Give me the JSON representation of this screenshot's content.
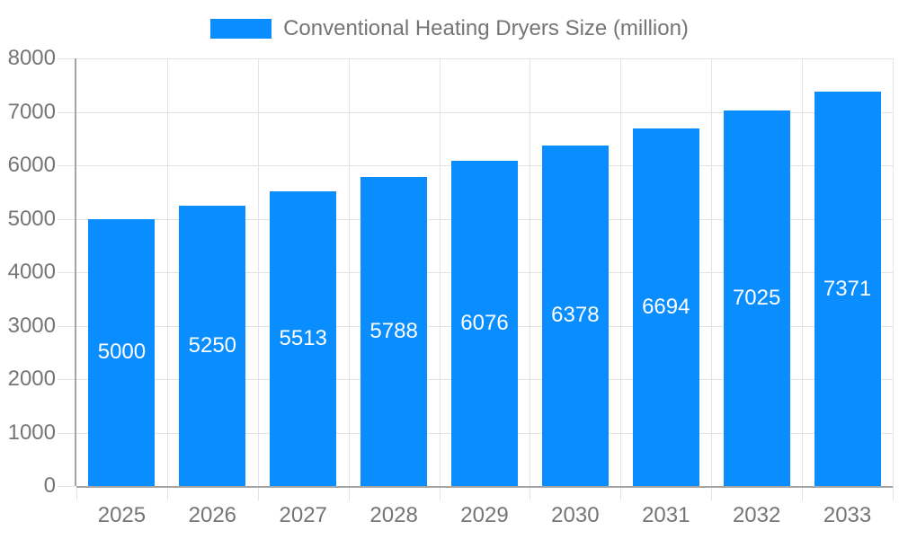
{
  "legend": {
    "label": "Conventional Heating Dryers Size (million)"
  },
  "colors": {
    "bar": "#0a8eff",
    "grid": "#e3e3e3",
    "axis": "#a3a3a3",
    "tick_label": "#757575",
    "value_label": "#ffffff",
    "background": "#ffffff"
  },
  "chart_data": {
    "type": "bar",
    "title": "",
    "categories": [
      "2025",
      "2026",
      "2027",
      "2028",
      "2029",
      "2030",
      "2031",
      "2032",
      "2033"
    ],
    "series": [
      {
        "name": "Conventional Heating Dryers Size (million)",
        "values": [
          5000,
          5250,
          5513,
          5788,
          6076,
          6378,
          6694,
          7025,
          7371
        ]
      }
    ],
    "data_labels": [
      "5000",
      "5250",
      "5513",
      "5788",
      "6076",
      "6378",
      "6694",
      "7025",
      "7371"
    ],
    "xlabel": "",
    "ylabel": "",
    "ylim": [
      0,
      8000
    ],
    "ytick_step": 1000,
    "ytick_labels": [
      "0",
      "1000",
      "2000",
      "3000",
      "4000",
      "5000",
      "6000",
      "7000",
      "8000"
    ],
    "grid": true,
    "legend_position": "top-center",
    "value_label_position": "inside-center",
    "value_label_color": "#ffffff"
  }
}
